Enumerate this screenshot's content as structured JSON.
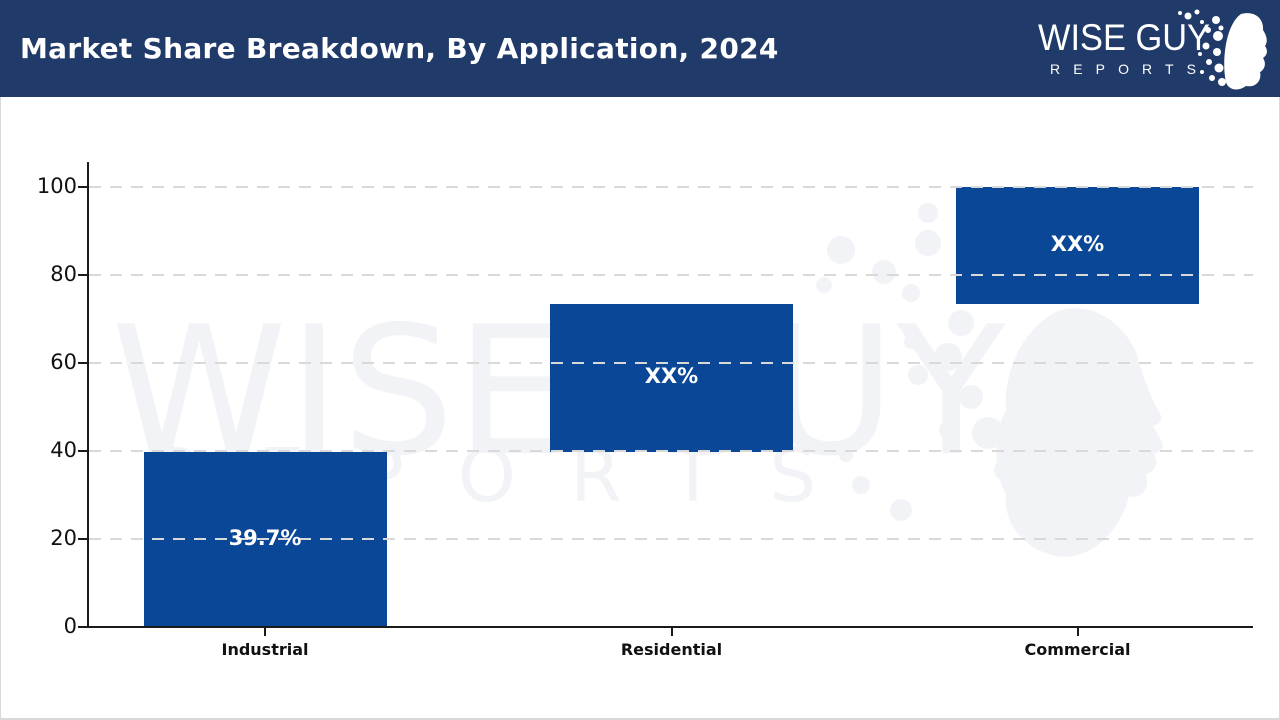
{
  "header": {
    "title": "Market Share Breakdown, By Application, 2024",
    "logo": {
      "line1": "WISE GUY",
      "line2": "REPORTS",
      "icon": "dotted-face-profile-icon"
    }
  },
  "watermark": {
    "line1": "WISE GUY",
    "line2": "REPORTS",
    "icon": "dotted-face-profile-watermark"
  },
  "colors": {
    "header_bg": "#203a69",
    "bar": "#0a4796",
    "grid": "#d9d9d9",
    "watermark": "#f2f3f6",
    "bar_label_text": "#ffffff",
    "axis_text": "#111111"
  },
  "chart_data": {
    "type": "bar",
    "subtype": "floating-cumulative-bars",
    "title": "Market Share Breakdown, By Application, 2024",
    "categories": [
      "Industrial",
      "Residential",
      "Commercial"
    ],
    "segments": [
      {
        "category": "Industrial",
        "from": 0,
        "to": 39.7,
        "label": "39.7%"
      },
      {
        "category": "Residential",
        "from": 39.7,
        "to": 73.3,
        "label": "XX%"
      },
      {
        "category": "Commercial",
        "from": 73.3,
        "to": 100,
        "label": "XX%"
      }
    ],
    "yticks": [
      0,
      20,
      40,
      60,
      80,
      100
    ],
    "ylim": [
      0,
      105
    ],
    "xlabel": "",
    "ylabel": "",
    "grid": "dashed-horizontal-above-bars",
    "legend": "none"
  }
}
